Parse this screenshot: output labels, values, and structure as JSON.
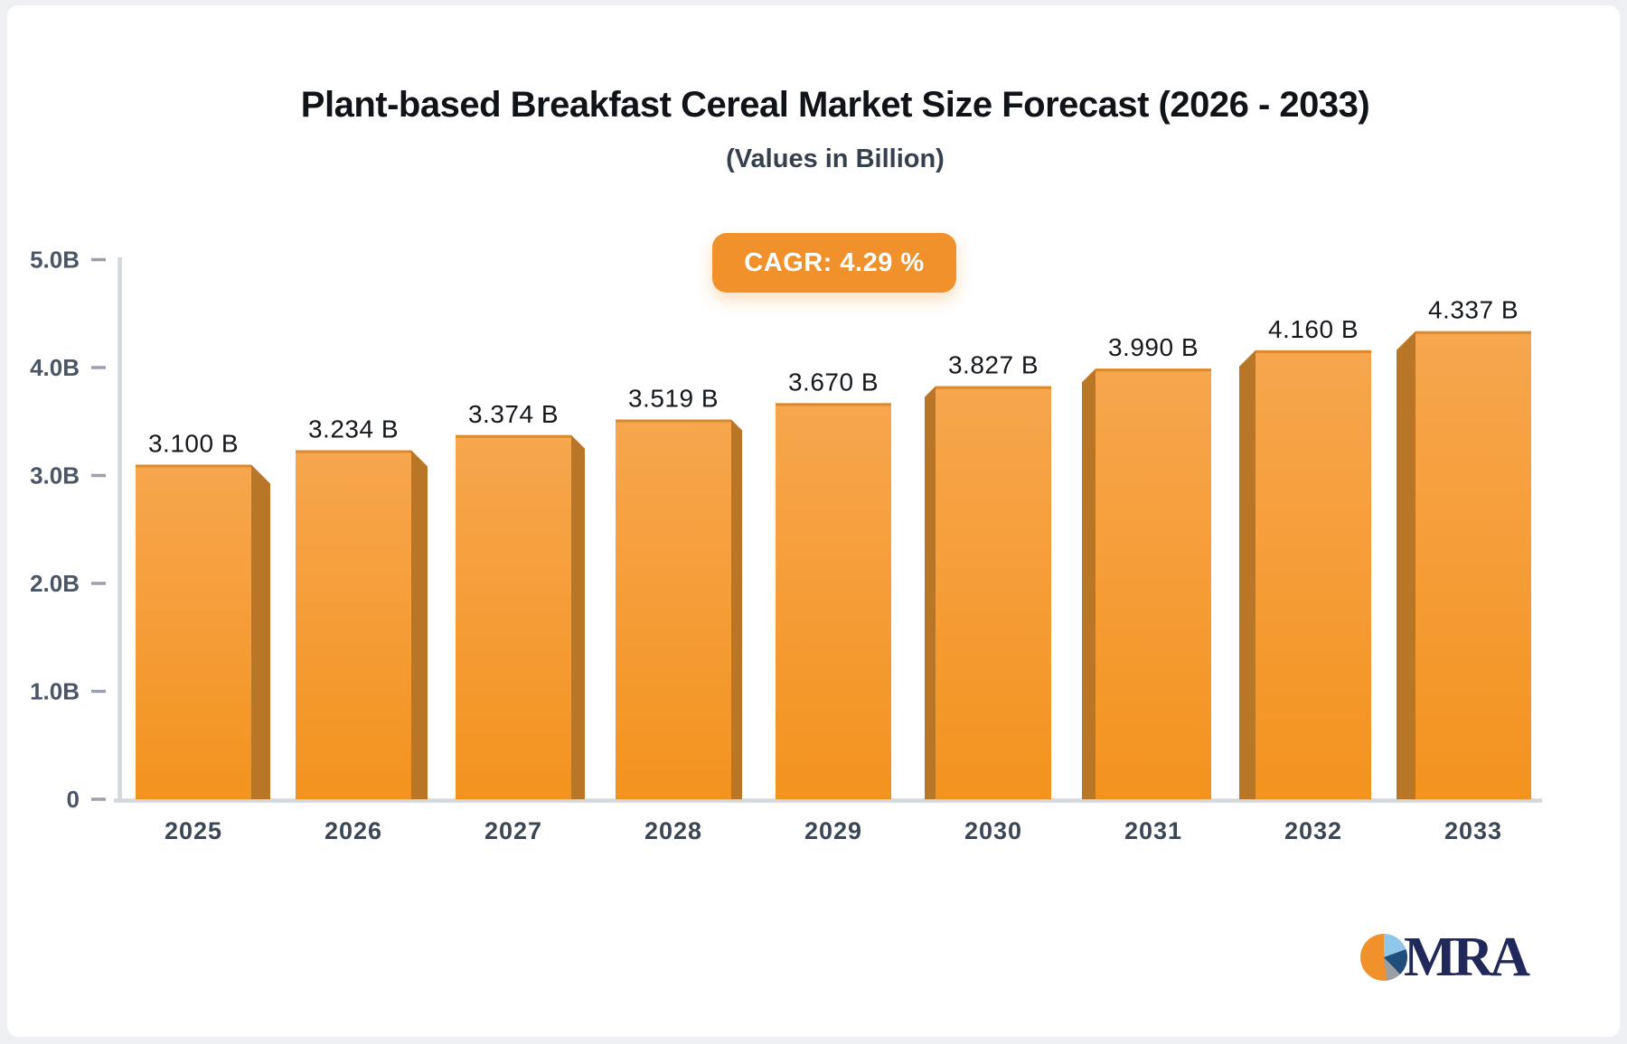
{
  "header": {
    "title": "Plant-based Breakfast Cereal Market Size Forecast (2026 - 2033)",
    "subtitle": "(Values in Billion)"
  },
  "badge": {
    "label": "CAGR: 4.29 %"
  },
  "chart_data": {
    "type": "bar",
    "title": "Plant-based Breakfast Cereal Market Size Forecast (2026 - 2033)",
    "subtitle": "(Values in Billion)",
    "unit": "Billion",
    "categories": [
      "2025",
      "2026",
      "2027",
      "2028",
      "2029",
      "2030",
      "2031",
      "2032",
      "2033"
    ],
    "values": [
      3.1,
      3.234,
      3.374,
      3.519,
      3.67,
      3.827,
      3.99,
      4.16,
      4.337
    ],
    "bar_labels": [
      "3.100 B",
      "3.234 B",
      "3.374 B",
      "3.519 B",
      "3.670 B",
      "3.827 B",
      "3.990 B",
      "4.160 B",
      "4.337 B"
    ],
    "cagr_label": "CAGR: 4.29 %",
    "ylim": [
      0,
      5
    ],
    "yticks": [
      {
        "value": 5.0,
        "label": "5.0B"
      },
      {
        "value": 4.0,
        "label": "4.0B"
      },
      {
        "value": 3.0,
        "label": "3.0B"
      },
      {
        "value": 2.0,
        "label": "2.0B"
      },
      {
        "value": 1.0,
        "label": "1.0B"
      },
      {
        "value": 0,
        "label": "0"
      }
    ],
    "grid": false,
    "legend": false,
    "colors": {
      "bar_face_top": "#F7A64E",
      "bar_face_bottom": "#F3931F",
      "bar_top_edge": "#DB892B",
      "bar_side": "#B97627",
      "axis_line": "#D4D7DC",
      "tick_dash": "#9AA1AC",
      "tick_label": "#4A5568",
      "category_label": "#3B4757",
      "value_label": "#15181C",
      "badge_bg": "#F0912B",
      "badge_text": "#FFFFFF"
    }
  },
  "logo": {
    "text": "MRA",
    "text_color": "#20295A",
    "pie_colors": {
      "orange": "#F0912B",
      "light_blue": "#8EC7E9",
      "navy": "#1F4E7C",
      "gray": "#9A9FA3"
    }
  }
}
